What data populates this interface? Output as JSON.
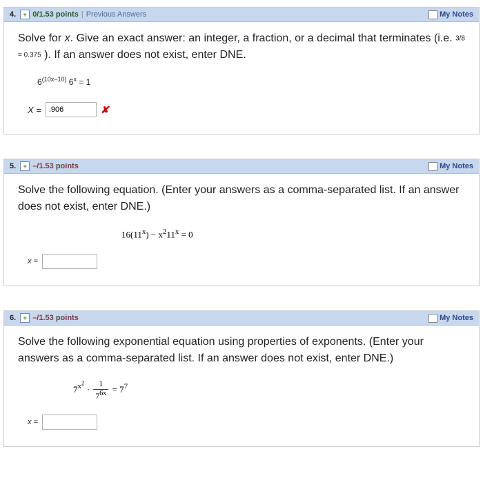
{
  "colors": {
    "header_bg": "#c7d7ed",
    "header_border": "#a9bedb",
    "card_border": "#cccccc",
    "link": "#4a6a9a",
    "notes": "#2a4a8a",
    "points_pos": "#2a5a2a",
    "points_neg": "#7a3a3a",
    "wrong": "#cc0000"
  },
  "common": {
    "my_notes": "My Notes",
    "prev_answers": "Previous Answers",
    "x_equals": "x =",
    "x_equals_big": "X ="
  },
  "q4": {
    "number": "4.",
    "points": "0/1.53 points",
    "has_prev": true,
    "prompt_1": "Solve for ",
    "prompt_var": "x",
    "prompt_2": ". Give an exact answer: an integer, a fraction, or a decimal that terminates (i.e. ",
    "prompt_frac": "3/8 = 0.375",
    "prompt_3": " ). If an answer does not exist, enter DNE.",
    "equation_html": "6<sup>(10x−10)</sup> 6<sup>x</sup> = 1",
    "answer_value": ".906",
    "input_width": 64,
    "wrong": true
  },
  "q5": {
    "number": "5.",
    "points": "–/1.53 points",
    "has_prev": false,
    "prompt": "Solve the following equation. (Enter your answers as a comma-separated list. If an answer does not exist, enter DNE.)",
    "equation_html": "16(11<sup>x</sup>) − x<sup>2</sup>11<sup>x</sup> = 0",
    "answer_value": "",
    "input_width": 70
  },
  "q6": {
    "number": "6.",
    "points": "–/1.53 points",
    "has_prev": false,
    "prompt": "Solve the following exponential equation using properties of exponents. (Enter your answers as a comma-separated list. If an answer does not exist, enter DNE.)",
    "eq_left_html": "7<sup>x<sup>2</sup></sup> ·",
    "eq_frac_num": "1",
    "eq_frac_den_html": "7<sup>6x</sup>",
    "eq_right_html": "= 7<sup>7</sup>",
    "answer_value": "",
    "input_width": 70
  }
}
